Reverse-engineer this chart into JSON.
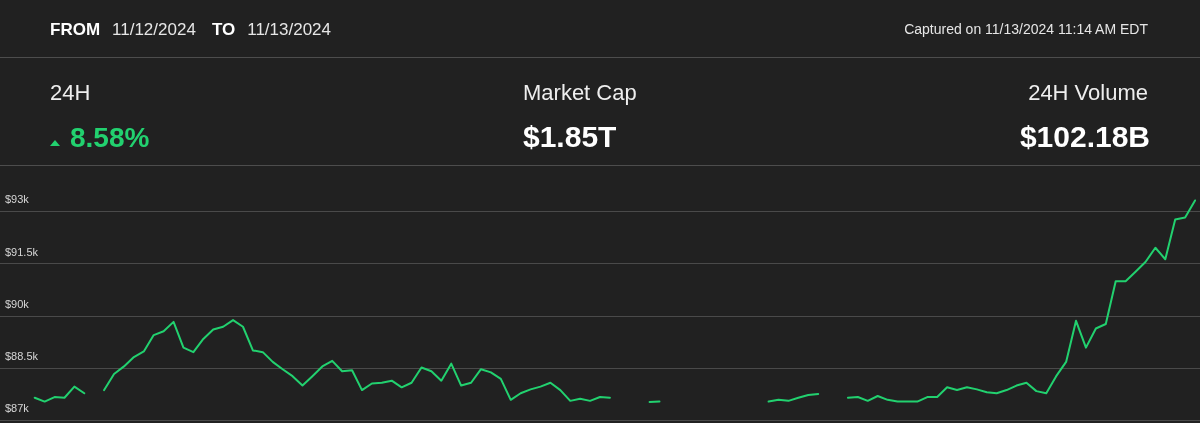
{
  "chart_data": {
    "type": "line",
    "annotations": [
      "FROM",
      "11/12/2024",
      "TO",
      "11/13/2024",
      "Captured on 11/13/2024 11:14 AM EDT",
      "24H",
      "8.58%",
      "Market Cap",
      "$1.85T",
      "24H Volume",
      "$102.18B"
    ],
    "categories": [
      null,
      null,
      null,
      null,
      null,
      null,
      null,
      null,
      null,
      null,
      null,
      null,
      null,
      null,
      null,
      null,
      null,
      null,
      null,
      null,
      null,
      null,
      null,
      null,
      null,
      null,
      null,
      null,
      null,
      null,
      null,
      null,
      null,
      null,
      null,
      null,
      null,
      null,
      null,
      null,
      null,
      null,
      null,
      null,
      null,
      null,
      null,
      null,
      null,
      null,
      null,
      null,
      null,
      null,
      null,
      null,
      null,
      null,
      null,
      null,
      null,
      null,
      null,
      null,
      null,
      null,
      null,
      null,
      null,
      null,
      null,
      null,
      null,
      null,
      null,
      null,
      null,
      null,
      null,
      null,
      null,
      null,
      null,
      null,
      null,
      null,
      null,
      null,
      null,
      null,
      null,
      null,
      null,
      null,
      null,
      null,
      null,
      null,
      null,
      null,
      null,
      null,
      null,
      null,
      null,
      null,
      null,
      null,
      null,
      null,
      null,
      null,
      null,
      null,
      null,
      null,
      null,
      null,
      null,
      null,
      null
    ],
    "values": [
      null,
      null,
      null,
      87640,
      87530,
      87660,
      87640,
      87960,
      87770,
      null,
      87860,
      88320,
      88540,
      88810,
      88970,
      89440,
      89550,
      89820,
      89080,
      88950,
      89330,
      89600,
      89680,
      89870,
      89680,
      89000,
      88950,
      88670,
      88460,
      88260,
      87990,
      88260,
      88540,
      88700,
      88400,
      88430,
      87860,
      88050,
      88070,
      88130,
      87940,
      88070,
      88510,
      88400,
      88130,
      88620,
      87990,
      88070,
      88460,
      88370,
      88180,
      87580,
      87770,
      87880,
      87960,
      88070,
      87860,
      87550,
      87610,
      87550,
      87660,
      87640,
      null,
      null,
      null,
      87520,
      87530,
      null,
      null,
      null,
      null,
      null,
      null,
      null,
      null,
      null,
      null,
      87530,
      87580,
      87550,
      87640,
      87720,
      87750,
      null,
      null,
      87640,
      87660,
      87550,
      87690,
      87580,
      87530,
      87530,
      87530,
      87660,
      87660,
      87940,
      87860,
      87940,
      87880,
      87800,
      87770,
      87860,
      87990,
      88070,
      87830,
      87770,
      88260,
      88670,
      89850,
      89080,
      89630,
      89760,
      90990,
      90990,
      91260,
      91540,
      91950,
      91620,
      92760,
      92820,
      93310
    ],
    "color": "#22d16f",
    "ylim": [
      87000,
      94300
    ],
    "yticks": [
      {
        "value": 87000,
        "label": "$87k"
      },
      {
        "value": 88500,
        "label": "$88.5k"
      },
      {
        "value": 90000,
        "label": "$90k"
      },
      {
        "value": 91500,
        "label": "$91.5k"
      },
      {
        "value": 93000,
        "label": "$93k"
      }
    ],
    "grid": "y",
    "line_style": "solid"
  }
}
